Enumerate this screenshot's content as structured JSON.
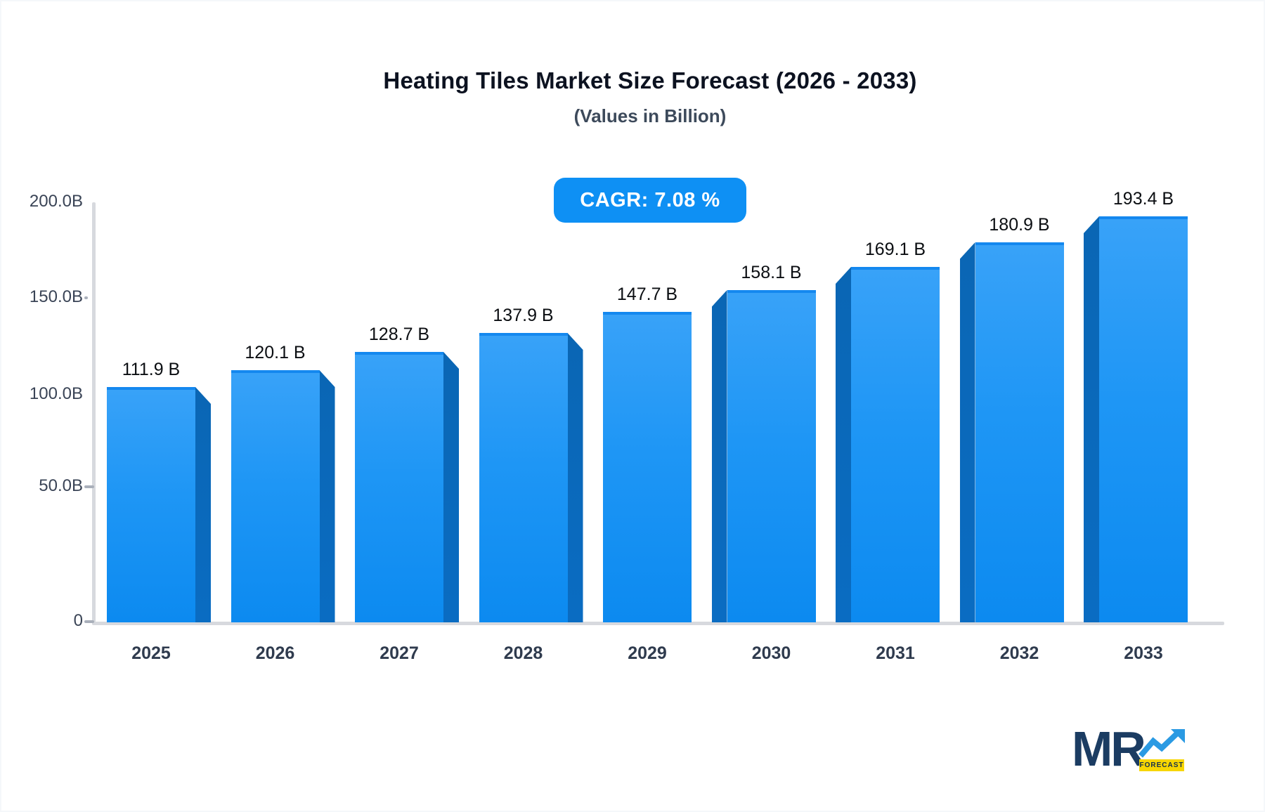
{
  "title": "Heating Tiles Market Size Forecast (2026 - 2033)",
  "subtitle": "(Values in Billion)",
  "cagr_badge": "CAGR: 7.08 %",
  "logo": {
    "mr": "MR",
    "forecast": "FORECAST"
  },
  "colors": {
    "accent_blue": "#0e90f4",
    "bar_face_top": "#38a2f8",
    "bar_face_bottom": "#0c8af0",
    "bar_side": "#0a6cc2",
    "axis_gray": "#d7d9de",
    "label_dark": "#2f3b4e"
  },
  "chart_data": {
    "type": "bar",
    "title": "Heating Tiles Market Size Forecast (2026 - 2033)",
    "subtitle": "(Values in Billion)",
    "cagr_percent": 7.08,
    "unit": "Billion",
    "categories": [
      "2025",
      "2026",
      "2027",
      "2028",
      "2029",
      "2030",
      "2031",
      "2032",
      "2033"
    ],
    "values": [
      111.9,
      120.1,
      128.7,
      137.9,
      147.7,
      158.1,
      169.1,
      180.9,
      193.4
    ],
    "value_labels": [
      "111.9 B",
      "120.1 B",
      "128.7 B",
      "137.9 B",
      "147.7 B",
      "158.1 B",
      "169.1 B",
      "180.9 B",
      "193.4 B"
    ],
    "y_ticks": [
      "200.0B",
      "150.0B",
      "100.0B",
      "50.0B",
      "0"
    ],
    "ylim": [
      0,
      200
    ],
    "grid": "off",
    "legend": "none",
    "bar_style": "3d-perspective-center-vanishing"
  }
}
